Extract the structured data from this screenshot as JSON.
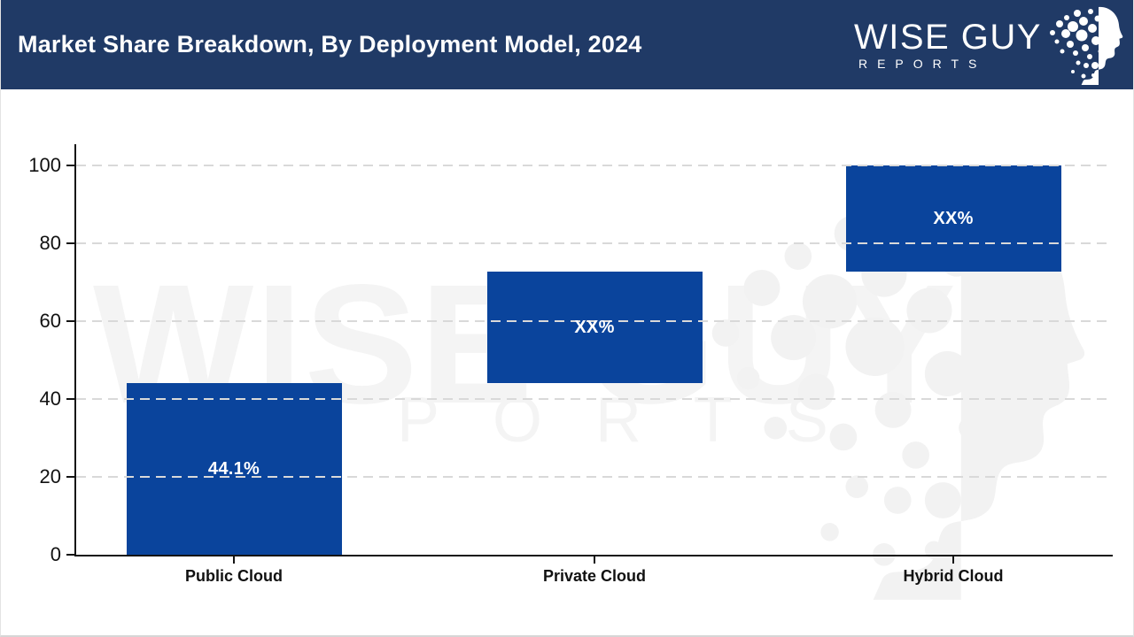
{
  "header": {
    "title": "Market Share Breakdown, By Deployment Model, 2024",
    "bg_color": "#203a66",
    "logo": {
      "line1": "WISE GUY",
      "line2": "REPORTS"
    }
  },
  "watermark": {
    "line1": "WISE GUY",
    "line2": "REPORTS"
  },
  "chart_data": {
    "type": "bar",
    "subtype": "floating-segment-cumulative-bars",
    "title": "Market Share Breakdown, By Deployment Model, 2024",
    "categories": [
      "Public Cloud",
      "Private Cloud",
      "Hybrid Cloud"
    ],
    "segments": [
      {
        "category": "Public Cloud",
        "start": 0,
        "end": 44.1,
        "value_label": "44.1%"
      },
      {
        "category": "Private Cloud",
        "start": 44.1,
        "end": 72.7,
        "value_label": "XX%"
      },
      {
        "category": "Hybrid Cloud",
        "start": 72.7,
        "end": 100,
        "value_label": "XX%"
      }
    ],
    "xlabel": "",
    "ylabel": "",
    "yticks": [
      0,
      20,
      40,
      60,
      80,
      100
    ],
    "ylim": [
      0,
      105.5
    ],
    "grid": {
      "horizontal": true,
      "style": "dashed",
      "color": "#d9d9d9",
      "drawn_above_bars": true
    },
    "legend": "none",
    "bar_color": "#0a449c",
    "bar_label_color": "#ffffff",
    "axis_color": "#141414",
    "tick_label_color": "#111111"
  }
}
